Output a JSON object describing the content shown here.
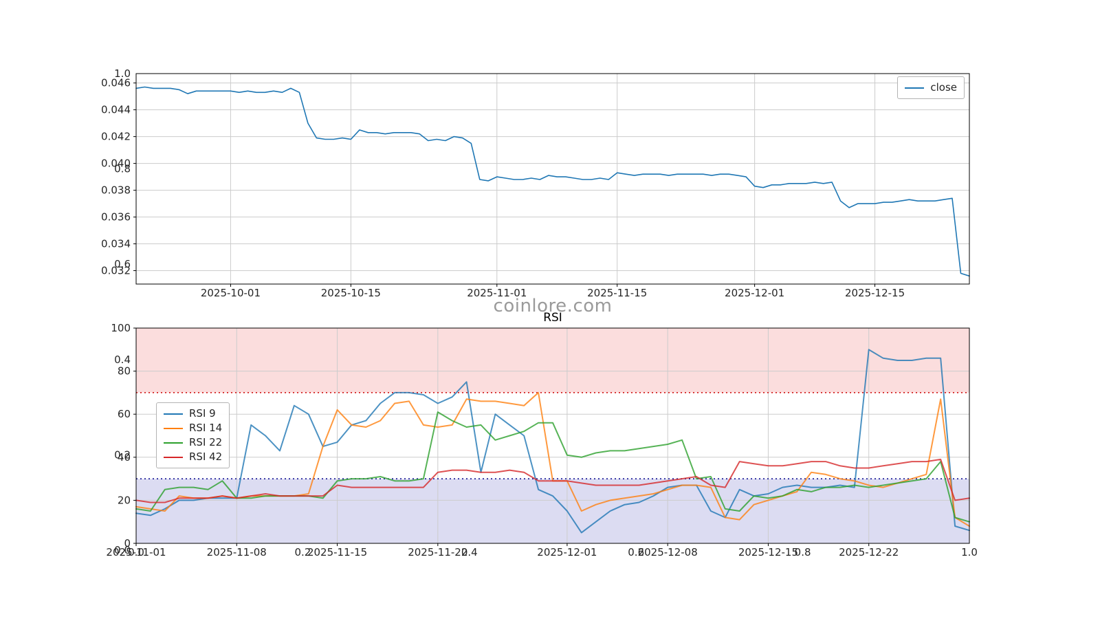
{
  "watermark": "coinlore.com",
  "overlay_axis": {
    "xticks": [
      "0.0",
      "0.2",
      "0.4",
      "0.6",
      "0.8",
      "1.0"
    ],
    "yticks": [
      "1.0",
      "0.8",
      "0.6",
      "0.4",
      "0.2",
      "0.0"
    ]
  },
  "chart_data": [
    {
      "type": "line",
      "title": "",
      "legend_position": "upper right",
      "grid": true,
      "ylim": [
        0.031,
        0.0467
      ],
      "yticks": [
        "0.046",
        "0.044",
        "0.042",
        "0.040",
        "0.038",
        "0.036",
        "0.034",
        "0.032"
      ],
      "ytick_values": [
        0.046,
        0.044,
        0.042,
        0.04,
        0.038,
        0.036,
        0.034,
        0.032
      ],
      "xticks": [
        "2025-10-01",
        "2025-10-15",
        "2025-11-01",
        "2025-11-15",
        "2025-12-01",
        "2025-12-15"
      ],
      "x": [
        "2025-09-20",
        "2025-09-21",
        "2025-09-22",
        "2025-09-23",
        "2025-09-24",
        "2025-09-25",
        "2025-09-26",
        "2025-09-27",
        "2025-09-28",
        "2025-09-29",
        "2025-09-30",
        "2025-10-01",
        "2025-10-02",
        "2025-10-03",
        "2025-10-04",
        "2025-10-05",
        "2025-10-06",
        "2025-10-07",
        "2025-10-08",
        "2025-10-09",
        "2025-10-10",
        "2025-10-11",
        "2025-10-12",
        "2025-10-13",
        "2025-10-14",
        "2025-10-15",
        "2025-10-16",
        "2025-10-17",
        "2025-10-18",
        "2025-10-19",
        "2025-10-20",
        "2025-10-21",
        "2025-10-22",
        "2025-10-23",
        "2025-10-24",
        "2025-10-25",
        "2025-10-26",
        "2025-10-27",
        "2025-10-28",
        "2025-10-29",
        "2025-10-30",
        "2025-10-31",
        "2025-11-01",
        "2025-11-02",
        "2025-11-03",
        "2025-11-04",
        "2025-11-05",
        "2025-11-06",
        "2025-11-07",
        "2025-11-08",
        "2025-11-09",
        "2025-11-10",
        "2025-11-11",
        "2025-11-12",
        "2025-11-13",
        "2025-11-14",
        "2025-11-15",
        "2025-11-16",
        "2025-11-17",
        "2025-11-18",
        "2025-11-19",
        "2025-11-20",
        "2025-11-21",
        "2025-11-22",
        "2025-11-23",
        "2025-11-24",
        "2025-11-25",
        "2025-11-26",
        "2025-11-27",
        "2025-11-28",
        "2025-11-29",
        "2025-11-30",
        "2025-12-01",
        "2025-12-02",
        "2025-12-03",
        "2025-12-04",
        "2025-12-05",
        "2025-12-06",
        "2025-12-07",
        "2025-12-08",
        "2025-12-09",
        "2025-12-10",
        "2025-12-11",
        "2025-12-12",
        "2025-12-13",
        "2025-12-14",
        "2025-12-15",
        "2025-12-16",
        "2025-12-17",
        "2025-12-18",
        "2025-12-19",
        "2025-12-20",
        "2025-12-21",
        "2025-12-22",
        "2025-12-23",
        "2025-12-24",
        "2025-12-25",
        "2025-12-26"
      ],
      "series": [
        {
          "name": "close",
          "color": "#1f77b4",
          "values": [
            0.0456,
            0.0457,
            0.0456,
            0.0456,
            0.0456,
            0.0455,
            0.0452,
            0.0454,
            0.0454,
            0.0454,
            0.0454,
            0.0454,
            0.0453,
            0.0454,
            0.0453,
            0.0453,
            0.0454,
            0.0453,
            0.0456,
            0.0453,
            0.043,
            0.0419,
            0.0418,
            0.0418,
            0.0419,
            0.0418,
            0.0425,
            0.0423,
            0.0423,
            0.0422,
            0.0423,
            0.0423,
            0.0423,
            0.0422,
            0.0417,
            0.0418,
            0.0417,
            0.042,
            0.0419,
            0.0415,
            0.0388,
            0.0387,
            0.039,
            0.0389,
            0.0388,
            0.0388,
            0.0389,
            0.0388,
            0.0391,
            0.039,
            0.039,
            0.0389,
            0.0388,
            0.0388,
            0.0389,
            0.0388,
            0.0393,
            0.0392,
            0.0391,
            0.0392,
            0.0392,
            0.0392,
            0.0391,
            0.0392,
            0.0392,
            0.0392,
            0.0392,
            0.0391,
            0.0392,
            0.0392,
            0.0391,
            0.039,
            0.0383,
            0.0382,
            0.0384,
            0.0384,
            0.0385,
            0.0385,
            0.0385,
            0.0386,
            0.0385,
            0.0386,
            0.0372,
            0.0367,
            0.037,
            0.037,
            0.037,
            0.0371,
            0.0371,
            0.0372,
            0.0373,
            0.0372,
            0.0372,
            0.0372,
            0.0373,
            0.0374,
            0.0318,
            0.0316
          ]
        }
      ]
    },
    {
      "type": "line",
      "title": "RSI",
      "legend_position": "center left",
      "grid": true,
      "ylim": [
        0,
        100
      ],
      "yticks": [
        "100",
        "80",
        "60",
        "40",
        "20",
        "0"
      ],
      "ytick_values": [
        100,
        80,
        60,
        40,
        20,
        0
      ],
      "xticks": [
        "2025-11-01",
        "2025-11-08",
        "2025-11-15",
        "2025-11-22",
        "2025-12-01",
        "2025-12-08",
        "2025-12-15",
        "2025-12-22"
      ],
      "thresholds": {
        "overbought": 70,
        "oversold": 30,
        "overbought_color": "#cc0000",
        "oversold_color": "#00008b"
      },
      "regions": [
        {
          "name": "overbought-region",
          "from": 70,
          "to": 100,
          "color": "#fbdddd"
        },
        {
          "name": "oversold-region",
          "from": 0,
          "to": 30,
          "color": "#dcdcf2"
        }
      ],
      "x": [
        "2025-11-01",
        "2025-11-02",
        "2025-11-03",
        "2025-11-04",
        "2025-11-05",
        "2025-11-06",
        "2025-11-07",
        "2025-11-08",
        "2025-11-09",
        "2025-11-10",
        "2025-11-11",
        "2025-11-12",
        "2025-11-13",
        "2025-11-14",
        "2025-11-15",
        "2025-11-16",
        "2025-11-17",
        "2025-11-18",
        "2025-11-19",
        "2025-11-20",
        "2025-11-21",
        "2025-11-22",
        "2025-11-23",
        "2025-11-24",
        "2025-11-25",
        "2025-11-26",
        "2025-11-27",
        "2025-11-28",
        "2025-11-29",
        "2025-11-30",
        "2025-12-01",
        "2025-12-02",
        "2025-12-03",
        "2025-12-04",
        "2025-12-05",
        "2025-12-06",
        "2025-12-07",
        "2025-12-08",
        "2025-12-09",
        "2025-12-10",
        "2025-12-11",
        "2025-12-12",
        "2025-12-13",
        "2025-12-14",
        "2025-12-15",
        "2025-12-16",
        "2025-12-17",
        "2025-12-18",
        "2025-12-19",
        "2025-12-20",
        "2025-12-21",
        "2025-12-22",
        "2025-12-23",
        "2025-12-24",
        "2025-12-25",
        "2025-12-26",
        "2025-12-27",
        "2025-12-28",
        "2025-12-29"
      ],
      "series": [
        {
          "name": "RSI 9",
          "color": "#1f77b4",
          "values": [
            14,
            13,
            16,
            20,
            20,
            21,
            21,
            21,
            55,
            50,
            43,
            64,
            60,
            45,
            47,
            55,
            57,
            65,
            70,
            70,
            69,
            65,
            68,
            75,
            33,
            60,
            55,
            50,
            25,
            22,
            15,
            5,
            10,
            15,
            18,
            19,
            22,
            26,
            27,
            27,
            15,
            12,
            25,
            22,
            23,
            26,
            27,
            26,
            26,
            27,
            26,
            90,
            86,
            85,
            85,
            86,
            86,
            8,
            6
          ]
        },
        {
          "name": "RSI 14",
          "color": "#ff7f0e",
          "values": [
            17,
            16,
            15,
            22,
            21,
            21,
            22,
            21,
            22,
            22,
            22,
            22,
            23,
            45,
            62,
            55,
            54,
            57,
            65,
            66,
            55,
            54,
            55,
            67,
            66,
            66,
            65,
            64,
            70,
            29,
            29,
            15,
            18,
            20,
            21,
            22,
            23,
            25,
            27,
            27,
            26,
            12,
            11,
            18,
            20,
            22,
            24,
            33,
            32,
            30,
            29,
            27,
            26,
            28,
            30,
            32,
            67,
            12,
            8
          ]
        },
        {
          "name": "RSI 22",
          "color": "#2ca02c",
          "values": [
            16,
            15,
            25,
            26,
            26,
            25,
            29,
            21,
            21,
            22,
            22,
            22,
            22,
            21,
            29,
            30,
            30,
            31,
            29,
            29,
            30,
            61,
            57,
            54,
            55,
            48,
            50,
            52,
            56,
            56,
            41,
            40,
            42,
            43,
            43,
            44,
            45,
            46,
            48,
            30,
            31,
            16,
            15,
            22,
            21,
            22,
            25,
            24,
            26,
            26,
            27,
            26,
            27,
            28,
            29,
            30,
            38,
            12,
            10
          ]
        },
        {
          "name": "RSI 42",
          "color": "#d62728",
          "values": [
            20,
            19,
            19,
            21,
            21,
            21,
            22,
            21,
            22,
            23,
            22,
            22,
            22,
            22,
            27,
            26,
            26,
            26,
            26,
            26,
            26,
            33,
            34,
            34,
            33,
            33,
            34,
            33,
            29,
            29,
            29,
            28,
            27,
            27,
            27,
            27,
            28,
            29,
            30,
            31,
            27,
            26,
            38,
            37,
            36,
            36,
            37,
            38,
            38,
            36,
            35,
            35,
            36,
            37,
            38,
            38,
            39,
            20,
            21
          ]
        }
      ]
    }
  ]
}
